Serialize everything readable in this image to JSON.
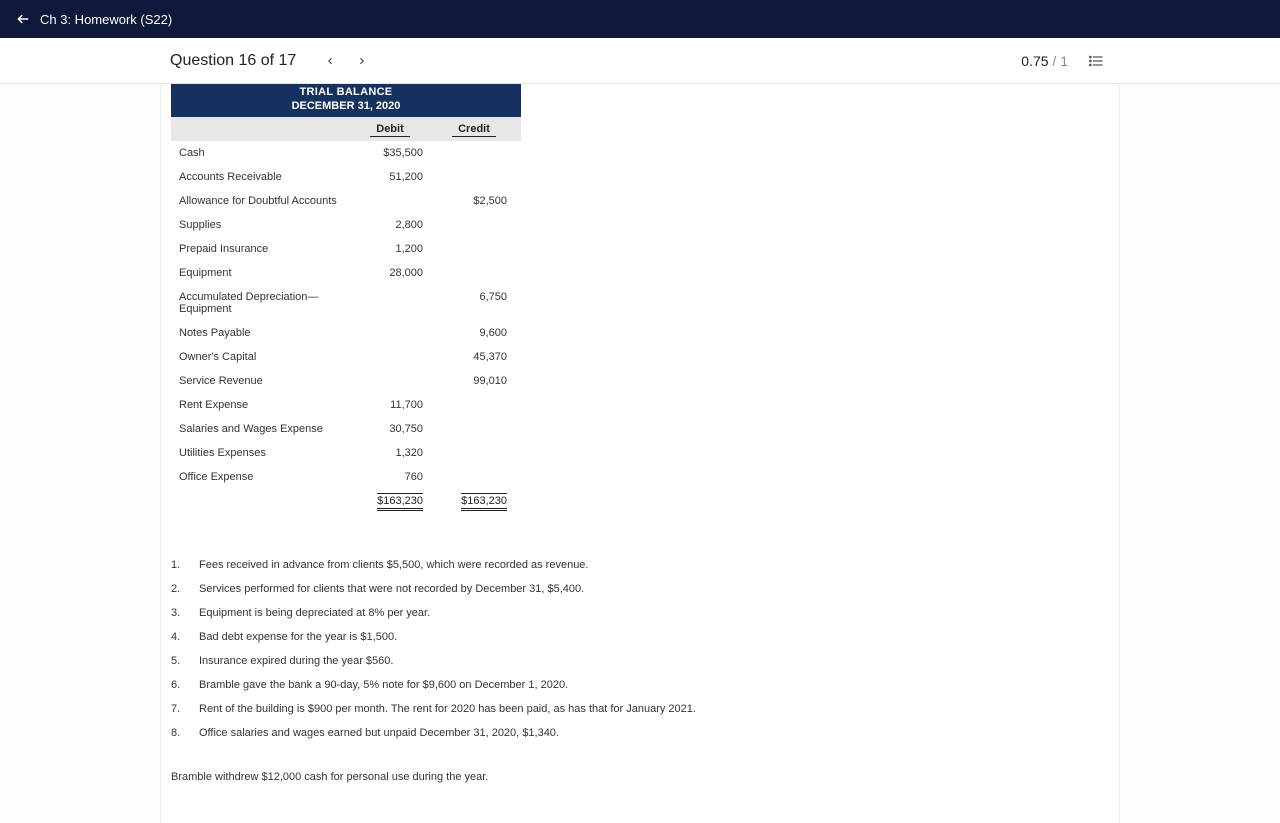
{
  "topbar": {
    "title": "Ch 3: Homework (S22)"
  },
  "qbar": {
    "title": "Question 16 of 17",
    "score_earned": "0.75",
    "score_sep": " / ",
    "score_max": "1"
  },
  "trial_balance": {
    "title_line1": "TRIAL BALANCE",
    "title_line2": "DECEMBER 31, 2020",
    "col_debit": "Debit",
    "col_credit": "Credit",
    "rows": [
      {
        "acct": "Cash",
        "debit": "$35,500",
        "credit": ""
      },
      {
        "acct": "Accounts Receivable",
        "debit": "51,200",
        "credit": ""
      },
      {
        "acct": "Allowance for Doubtful Accounts",
        "debit": "",
        "credit": "$2,500"
      },
      {
        "acct": "Supplies",
        "debit": "2,800",
        "credit": ""
      },
      {
        "acct": "Prepaid Insurance",
        "debit": "1,200",
        "credit": ""
      },
      {
        "acct": "Equipment",
        "debit": "28,000",
        "credit": ""
      },
      {
        "acct": "Accumulated Depreciation—Equipment",
        "debit": "",
        "credit": "6,750"
      },
      {
        "acct": "Notes Payable",
        "debit": "",
        "credit": "9,600"
      },
      {
        "acct": "Owner's Capital",
        "debit": "",
        "credit": "45,370"
      },
      {
        "acct": "Service Revenue",
        "debit": "",
        "credit": "99,010"
      },
      {
        "acct": "Rent Expense",
        "debit": "11,700",
        "credit": ""
      },
      {
        "acct": "Salaries and Wages Expense",
        "debit": "30,750",
        "credit": ""
      },
      {
        "acct": "Utilities Expenses",
        "debit": "1,320",
        "credit": ""
      },
      {
        "acct": "Office Expense",
        "debit": "760",
        "credit": ""
      }
    ],
    "total_debit": "$163,230",
    "total_credit": "$163,230"
  },
  "notes": [
    "Fees received in advance from clients $5,500, which were recorded as revenue.",
    "Services performed for clients that were not recorded by December 31, $5,400.",
    "Equipment is being depreciated at 8% per year.",
    "Bad debt expense for the year is $1,500.",
    "Insurance expired during the year $560.",
    "Bramble gave the bank a 90-day, 5% note for $9,600 on December 1, 2020.",
    "Rent of the building is $900 per month. The rent for 2020 has been paid, as has that for January 2021.",
    "Office salaries and wages earned but unpaid December 31, 2020, $1,340."
  ],
  "footnote": "Bramble withdrew $12,000 cash for personal use during the year."
}
